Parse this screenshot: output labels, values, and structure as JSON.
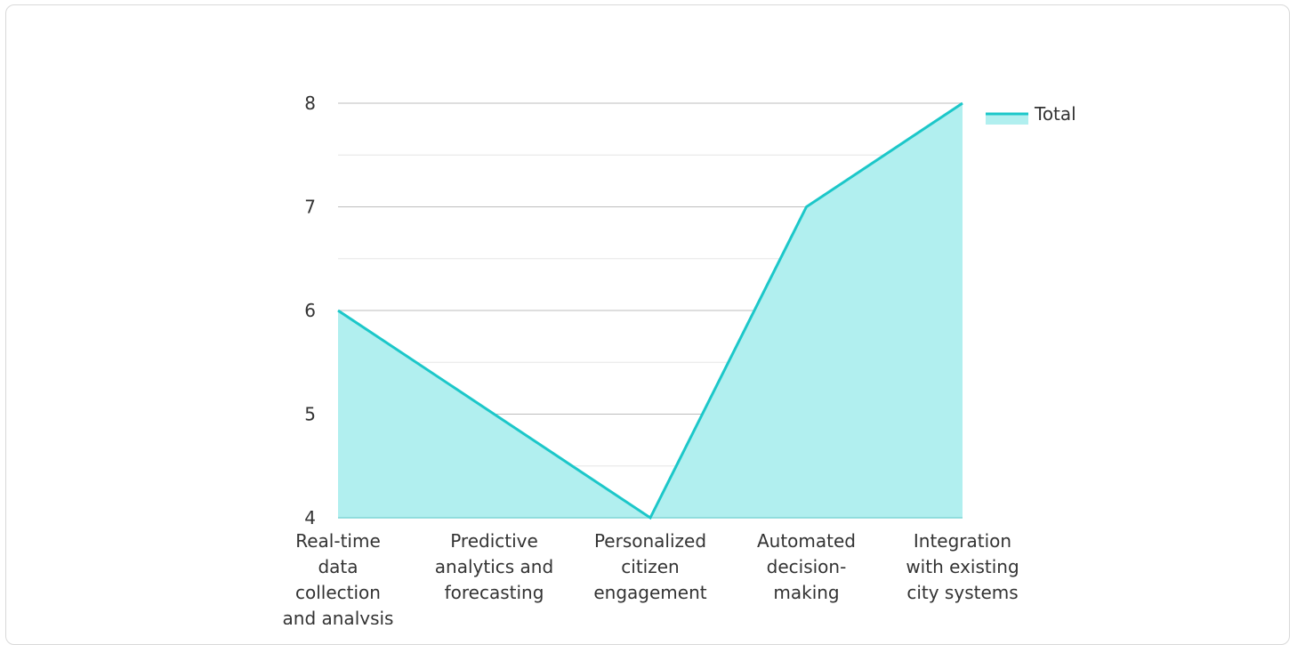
{
  "chart_data": {
    "type": "area",
    "categories": [
      [
        "Real-time",
        "data",
        "collection",
        "and analysis"
      ],
      [
        "Predictive",
        "analytics and",
        "forecasting"
      ],
      [
        "Personalized",
        "citizen",
        "engagement"
      ],
      [
        "Automated",
        "decision-",
        "making"
      ],
      [
        "Integration",
        "with existing",
        "city systems"
      ]
    ],
    "series": [
      {
        "name": "Total",
        "values": [
          6,
          5,
          4,
          7,
          8
        ]
      }
    ],
    "ylim": [
      4,
      8
    ],
    "yticks": [
      "4",
      "5",
      "6",
      "7",
      "8"
    ],
    "grid": true,
    "legend_position": "top-right",
    "colors": {
      "line": "#1cc7c9",
      "fill": "#b1efef",
      "grid_major": "#bdbdbd",
      "grid_minor": "#e6e6e6"
    }
  }
}
